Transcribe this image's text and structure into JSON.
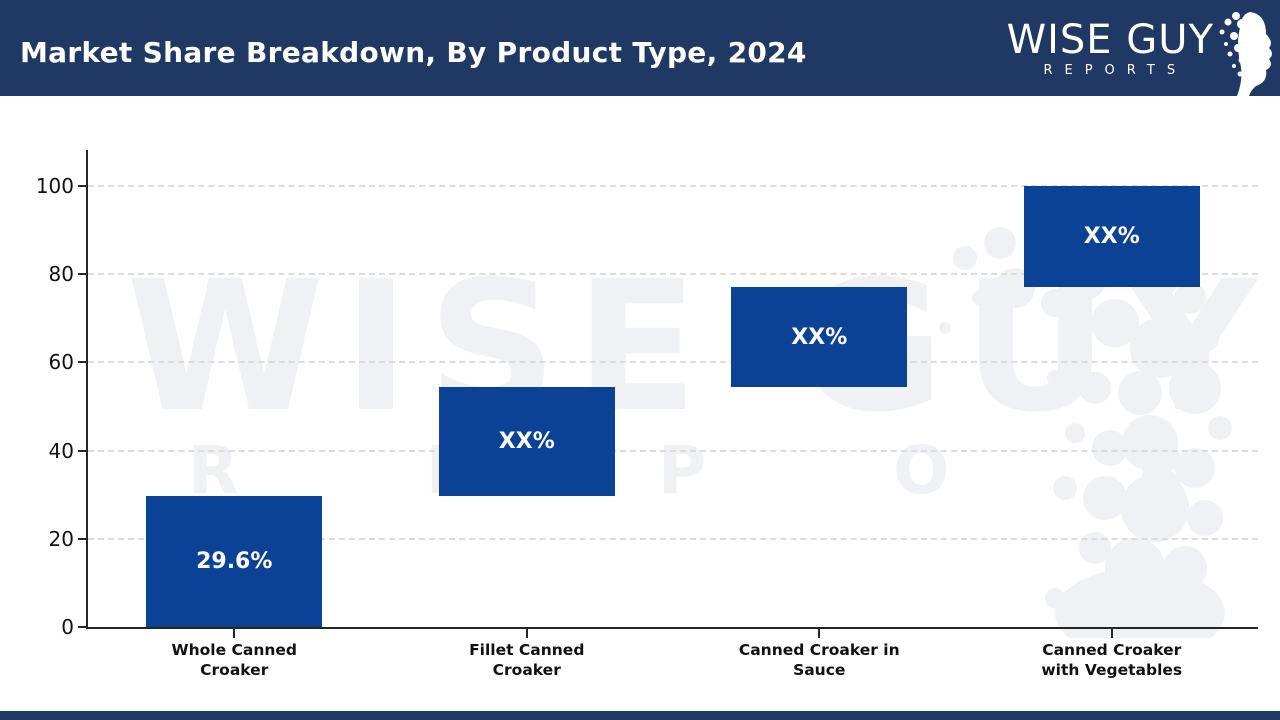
{
  "header": {
    "title": "Market Share Breakdown, By Product Type, 2024",
    "logo": {
      "name_line": "WISE GUY",
      "sub_line": "REPORTS"
    }
  },
  "watermark": {
    "name_line": "WISE GUY",
    "sub_line": "R E P O R T S"
  },
  "colors": {
    "header_bg": "#1f3864",
    "footer_bg": "#1f3864",
    "bar": "#0b4296",
    "bar_label_text": "#ffffff",
    "grid": "#dcdcdc",
    "axis": "#262626",
    "watermark": "#f0f1f4"
  },
  "chart_data": {
    "type": "bar",
    "variant": "stacked-waterfall",
    "title": "Market Share Breakdown, By Product Type, 2024",
    "categories": [
      "Whole Canned\nCroaker",
      "Fillet Canned\nCroaker",
      "Canned Croaker in\nSauce",
      "Canned Croaker\nwith Vegetables"
    ],
    "segments": [
      {
        "category": "Whole Canned Croaker",
        "start": 0,
        "end": 29.6,
        "value": 29.6,
        "label": "29.6%"
      },
      {
        "category": "Fillet Canned Croaker",
        "start": 29.6,
        "end": 54.4,
        "value": 24.8,
        "label": "XX%"
      },
      {
        "category": "Canned Croaker in Sauce",
        "start": 54.4,
        "end": 77.1,
        "value": 22.7,
        "label": "XX%"
      },
      {
        "category": "Canned Croaker with Vegetables",
        "start": 77.1,
        "end": 100,
        "value": 22.9,
        "label": "XX%"
      }
    ],
    "bar_labels": [
      "29.6%",
      "XX%",
      "XX%",
      "XX%"
    ],
    "yticks": [
      0,
      20,
      40,
      60,
      80,
      100
    ],
    "ylim": [
      0,
      100
    ],
    "xlabel": "",
    "ylabel": "",
    "grid": "horizontal-dashed",
    "legend": "none"
  }
}
